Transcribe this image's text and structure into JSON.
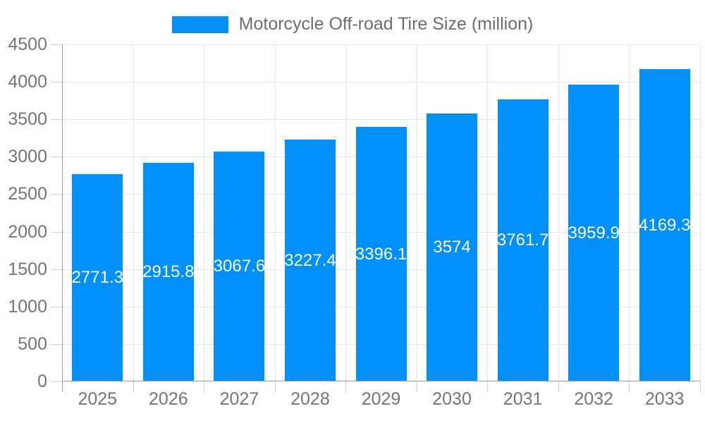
{
  "chart_data": {
    "type": "bar",
    "title": "Motorcycle Off-road Tire Size (million)",
    "categories": [
      "2025",
      "2026",
      "2027",
      "2028",
      "2029",
      "2030",
      "2031",
      "2032",
      "2033"
    ],
    "values": [
      2771.3,
      2915.8,
      3067.6,
      3227.4,
      3396.1,
      3574,
      3761.7,
      3959.9,
      4169.3
    ],
    "value_labels": [
      "2771.3",
      "2915.8",
      "3067.6",
      "3227.4",
      "3396.1",
      "3574",
      "3761.7",
      "3959.9",
      "4169.3"
    ],
    "xlabel": "",
    "ylabel": "",
    "ylim": [
      0,
      4500
    ],
    "yticks": [
      0,
      500,
      1000,
      1500,
      2000,
      2500,
      3000,
      3500,
      4000,
      4500
    ],
    "grid": true,
    "legend_position": "top",
    "colors": {
      "bar": "#008FFB",
      "title_text": "#6E6E6E",
      "axis_text": "#757575",
      "value_label_text": "#FFFFFF",
      "gridline": "#E6E6E6",
      "axis_line": "#9A9A9A",
      "tick": "#CCCCCC",
      "background": "#FFFFFF"
    }
  }
}
